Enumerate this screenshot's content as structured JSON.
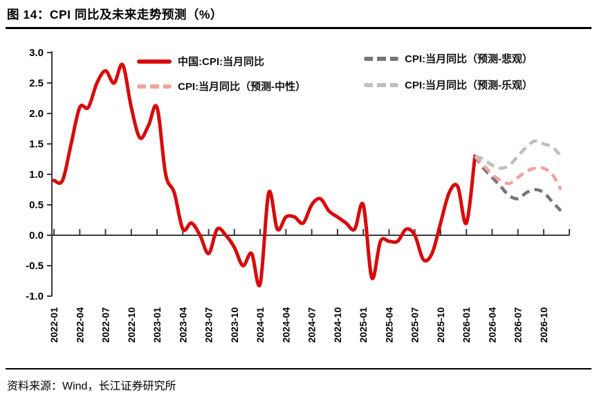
{
  "header": {
    "title": "图 14：CPI 同比及未来走势预测（%）"
  },
  "footer": {
    "source": "资料来源：Wind，长江证券研究所"
  },
  "legend": {
    "items": [
      {
        "label": "中国:CPI:当月同比",
        "color": "#d70b0b",
        "dash": false
      },
      {
        "label": "CPI:当月同比（预测-悲观）",
        "color": "#767676",
        "dash": true
      },
      {
        "label": "CPI:当月同比（预测-中性）",
        "color": "#f2a2a2",
        "dash": true
      },
      {
        "label": "CPI:当月同比（预测-乐观）",
        "color": "#bfbfbf",
        "dash": true
      }
    ]
  },
  "chart_data": {
    "type": "line",
    "title": "CPI 同比及未来走势预测",
    "unit": "%",
    "ylim": [
      -1.0,
      3.0
    ],
    "y_ticks": [
      3.0,
      2.5,
      2.0,
      1.5,
      1.0,
      0.5,
      0.0,
      -0.5,
      -1.0
    ],
    "x_range": [
      "2022-01",
      "2027-01"
    ],
    "x_tick_labels": [
      "2022-01",
      "2022-04",
      "2022-07",
      "2022-10",
      "2023-01",
      "2023-04",
      "2023-07",
      "2023-10",
      "2024-01",
      "2024-04",
      "2024-07",
      "2024-10",
      "2025-01",
      "2025-04",
      "2025-07",
      "2025-10",
      "2026-01",
      "2026-04",
      "2026-07",
      "2026-10"
    ],
    "grid": false,
    "legend_position": "top-inside",
    "series": [
      {
        "name": "中国:CPI:当月同比",
        "color": "#d70b0b",
        "style": "solid",
        "start": "2022-01",
        "values": [
          0.9,
          0.9,
          1.5,
          2.1,
          2.1,
          2.5,
          2.7,
          2.5,
          2.8,
          2.1,
          1.6,
          1.8,
          2.1,
          1.0,
          0.7,
          0.1,
          0.2,
          0.0,
          -0.3,
          0.1,
          0.0,
          -0.2,
          -0.5,
          -0.3,
          -0.8,
          0.7,
          0.1,
          0.3,
          0.3,
          0.2,
          0.5,
          0.6,
          0.4,
          0.3,
          0.2,
          0.1,
          0.5,
          -0.7,
          -0.1,
          -0.1,
          -0.1,
          0.1,
          0.0,
          -0.4,
          -0.3,
          0.2,
          0.7,
          0.8,
          0.2,
          1.3
        ]
      },
      {
        "name": "CPI:当月同比（预测-悲观）",
        "color": "#767676",
        "style": "dashed",
        "start": "2026-02",
        "values": [
          1.3,
          1.1,
          0.95,
          0.8,
          0.65,
          0.6,
          0.7,
          0.75,
          0.7,
          0.55,
          0.4
        ]
      },
      {
        "name": "CPI:当月同比（预测-中性）",
        "color": "#f2a2a2",
        "style": "dashed",
        "start": "2026-02",
        "values": [
          1.3,
          1.15,
          1.0,
          0.9,
          0.85,
          0.95,
          1.05,
          1.1,
          1.1,
          1.0,
          0.75
        ]
      },
      {
        "name": "CPI:当月同比（预测-乐观）",
        "color": "#bfbfbf",
        "style": "dashed",
        "start": "2026-02",
        "values": [
          1.3,
          1.25,
          1.15,
          1.1,
          1.15,
          1.3,
          1.45,
          1.55,
          1.5,
          1.45,
          1.3
        ]
      }
    ]
  }
}
